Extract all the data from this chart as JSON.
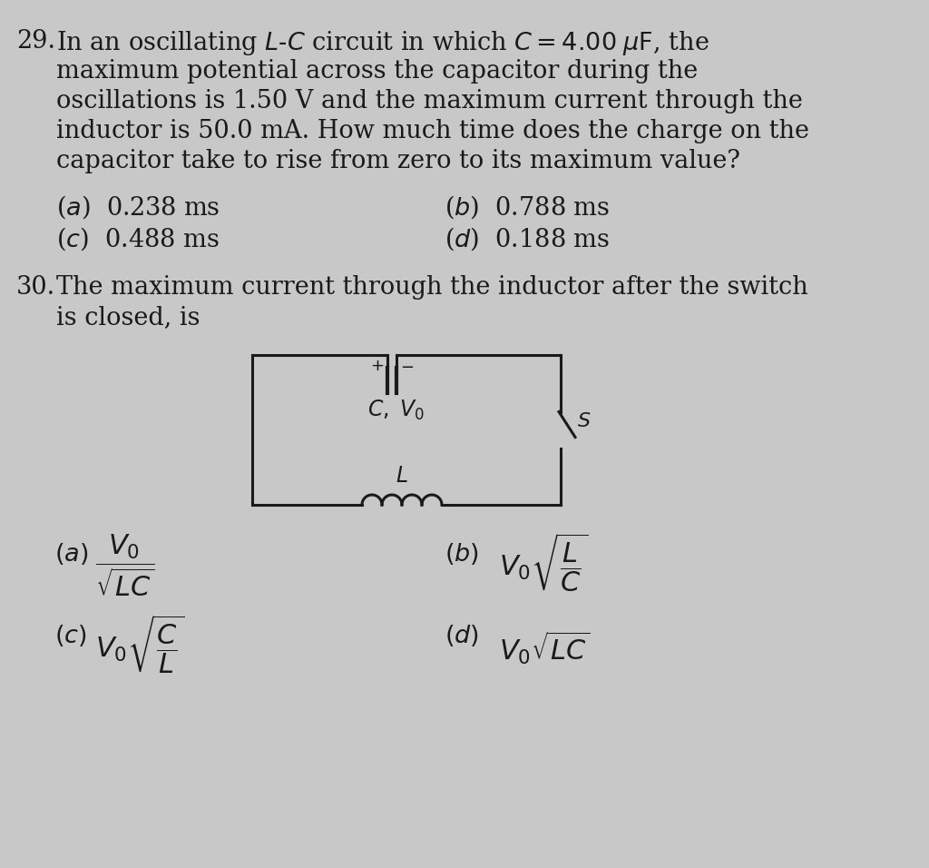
{
  "bg_color": "#c8c8c8",
  "text_color": "#1a1a1a",
  "q29_number": "29.",
  "q29_lines": [
    "In an oscillating $L$-$C$ circuit in which $C = 4.00\\;\\mu\\mathrm{F}$, the",
    "maximum potential across the capacitor during the",
    "oscillations is 1.50 V and the maximum current through the",
    "inductor is 50.0 mA. How much time does the charge on the",
    "capacitor take to rise from zero to its maximum value?"
  ],
  "q29_a": "($a$)  0.238 ms",
  "q29_b": "($b$)  0.788 ms",
  "q29_c": "($c$)  0.488 ms",
  "q29_d": "($d$)  0.188 ms",
  "q30_number": "30.",
  "q30_lines": [
    "The maximum current through the inductor after the switch",
    "is closed, is"
  ]
}
